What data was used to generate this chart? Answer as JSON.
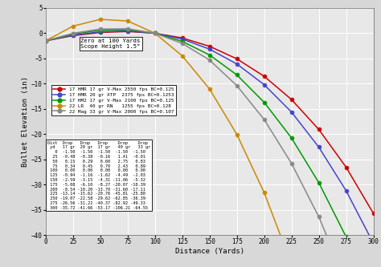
{
  "title": "",
  "xlabel": "Distance (Yards)",
  "ylabel": "Bullet Elevation (in)",
  "xlim": [
    0,
    300
  ],
  "ylim": [
    -40,
    5
  ],
  "xticks": [
    0,
    25,
    50,
    75,
    100,
    125,
    150,
    175,
    200,
    225,
    250,
    275,
    300
  ],
  "yticks": [
    5,
    0,
    -5,
    -10,
    -15,
    -20,
    -25,
    -30,
    -35,
    -40
  ],
  "zero_note": "Zero at 100 Yards\nScope Height 1.5\"",
  "series": [
    {
      "label": "17 HMR 17 gr V-Max 2550 fps BC=0.125",
      "color": "#cc0000",
      "distances": [
        0,
        25,
        50,
        75,
        100,
        125,
        150,
        175,
        200,
        225,
        250,
        275,
        300
      ],
      "drops": [
        -1.5,
        -0.48,
        0.15,
        0.34,
        0.0,
        -0.94,
        -2.59,
        -5.08,
        -8.54,
        -13.14,
        -19.07,
        -26.56,
        -35.72
      ]
    },
    {
      "label": "17 HMR 20 gr XTP  2375 fps BC=0.1253",
      "color": "#4444cc",
      "distances": [
        0,
        25,
        50,
        75,
        100,
        125,
        150,
        175,
        200,
        225,
        250,
        275,
        300
      ],
      "drops": [
        -1.5,
        -0.38,
        0.29,
        0.45,
        0.0,
        -1.16,
        -3.15,
        -6.1,
        -10.2,
        -15.62,
        -22.58,
        -31.22,
        -41.66
      ]
    },
    {
      "label": "17 HM2 17 gr V-Max 2100 fps BC=0.125",
      "color": "#009900",
      "distances": [
        0,
        25,
        50,
        75,
        100,
        125,
        150,
        175,
        200,
        225,
        250,
        275,
        300
      ],
      "drops": [
        -1.5,
        -0.16,
        0.6,
        0.7,
        0.0,
        -1.62,
        -4.31,
        -8.27,
        -13.7,
        -20.76,
        -29.62,
        -40.37,
        -53.17
      ]
    },
    {
      "label": "22 LR  40 gr RN   1255 fps BC=0.128",
      "color": "#cc8800",
      "distances": [
        0,
        25,
        50,
        75,
        100,
        125,
        150,
        175,
        200,
        225,
        250,
        275,
        300
      ],
      "drops": [
        -1.5,
        1.41,
        2.75,
        2.43,
        0.0,
        -4.49,
        -11.06,
        -20.07,
        -31.6,
        -45.81,
        -62.85,
        -82.92,
        -106.21
      ]
    },
    {
      "label": "22 Mag 33 gr V-Max 2000 fps BC=0.107",
      "color": "#888888",
      "distances": [
        0,
        25,
        50,
        75,
        100,
        125,
        150,
        175,
        200,
        225,
        250,
        275,
        300
      ],
      "drops": [
        -1.5,
        -0.01,
        0.83,
        0.89,
        0.0,
        -2.03,
        -5.32,
        -10.39,
        -17.11,
        -25.8,
        -36.39,
        -49.33,
        -64.55
      ]
    }
  ],
  "table_rows": [
    [
      0,
      -1.5,
      -1.5,
      -1.5,
      -1.5,
      -1.5
    ],
    [
      25,
      -0.48,
      -0.38,
      -0.16,
      1.41,
      -0.01
    ],
    [
      50,
      0.15,
      0.29,
      0.6,
      2.75,
      0.83
    ],
    [
      75,
      0.34,
      0.45,
      0.7,
      2.43,
      0.89
    ],
    [
      100,
      0.0,
      0.0,
      0.0,
      0.0,
      0.0
    ],
    [
      125,
      -0.94,
      -1.16,
      -1.62,
      -4.49,
      -2.03
    ],
    [
      150,
      -2.59,
      -3.15,
      -4.31,
      -11.06,
      -5.32
    ],
    [
      175,
      -5.08,
      -6.1,
      -8.27,
      -20.07,
      -10.39
    ],
    [
      200,
      -8.54,
      -10.2,
      -13.7,
      -31.6,
      -17.11
    ],
    [
      225,
      -13.14,
      -15.62,
      -20.76,
      -45.81,
      -25.8
    ],
    [
      250,
      -19.07,
      -22.58,
      -29.62,
      -62.85,
      -36.39
    ],
    [
      275,
      -26.56,
      -31.22,
      -40.37,
      -82.92,
      -49.33
    ],
    [
      300,
      -35.72,
      -41.66,
      -53.17,
      -106.21,
      -64.55
    ]
  ],
  "bg_color": "#d8d8d8",
  "plot_bg_color": "#e8e8e8",
  "grid_color": "#ffffff"
}
